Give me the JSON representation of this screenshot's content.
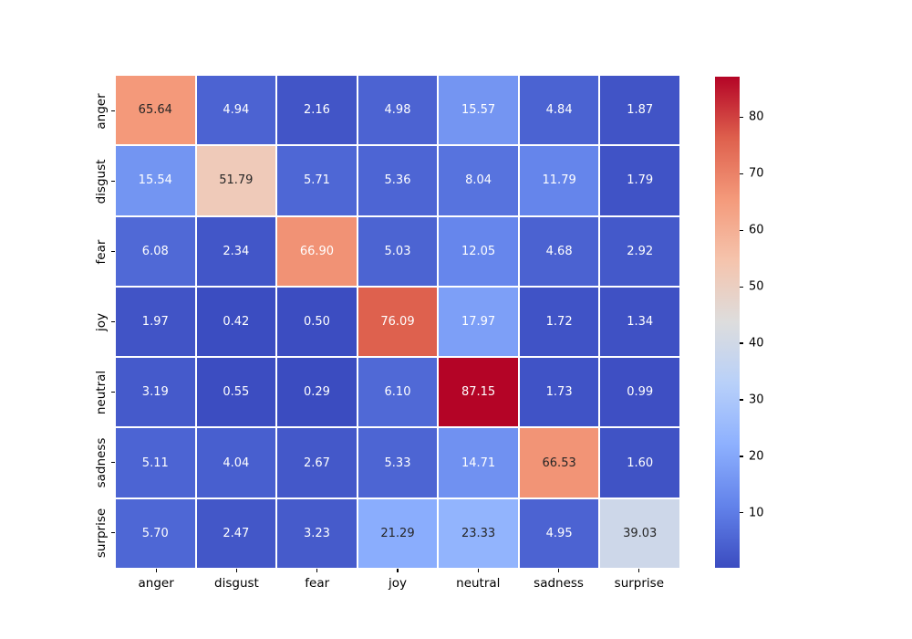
{
  "figure": {
    "background": "#ffffff"
  },
  "chart_data": {
    "type": "heatmap",
    "title": "",
    "xlabel": "",
    "ylabel": "",
    "x_categories": [
      "anger",
      "disgust",
      "fear",
      "joy",
      "neutral",
      "sadness",
      "surprise"
    ],
    "y_categories": [
      "anger",
      "disgust",
      "fear",
      "joy",
      "neutral",
      "sadness",
      "surprise"
    ],
    "matrix": [
      [
        65.64,
        4.94,
        2.16,
        4.98,
        15.57,
        4.84,
        1.87
      ],
      [
        15.54,
        51.79,
        5.71,
        5.36,
        8.04,
        11.79,
        1.79
      ],
      [
        6.08,
        2.34,
        66.9,
        5.03,
        12.05,
        4.68,
        2.92
      ],
      [
        1.97,
        0.42,
        0.5,
        76.09,
        17.97,
        1.72,
        1.34
      ],
      [
        3.19,
        0.55,
        0.29,
        6.1,
        87.15,
        1.73,
        0.99
      ],
      [
        5.11,
        4.04,
        2.67,
        5.33,
        14.71,
        66.53,
        1.6
      ],
      [
        5.7,
        2.47,
        3.23,
        21.29,
        23.33,
        4.95,
        39.03
      ]
    ],
    "value_decimals": 2,
    "vmin": 0.29,
    "vmax": 87.15,
    "annotation_text_colors": [
      [
        "dark",
        "light",
        "light",
        "light",
        "light",
        "light",
        "light"
      ],
      [
        "light",
        "dark",
        "light",
        "light",
        "light",
        "light",
        "light"
      ],
      [
        "light",
        "light",
        "light",
        "light",
        "light",
        "light",
        "light"
      ],
      [
        "light",
        "light",
        "light",
        "light",
        "light",
        "light",
        "light"
      ],
      [
        "light",
        "light",
        "light",
        "light",
        "light",
        "light",
        "light"
      ],
      [
        "light",
        "light",
        "light",
        "light",
        "light",
        "dark",
        "light"
      ],
      [
        "light",
        "light",
        "light",
        "dark",
        "dark",
        "light",
        "dark"
      ]
    ],
    "annotation_colors": {
      "light": "#ffffff",
      "dark": "#262626"
    },
    "colormap": {
      "name": "coolwarm",
      "stops": [
        [
          59,
          76,
          192
        ],
        [
          98,
          130,
          234
        ],
        [
          141,
          176,
          254
        ],
        [
          184,
          208,
          249
        ],
        [
          221,
          221,
          221
        ],
        [
          245,
          196,
          173
        ],
        [
          244,
          154,
          123
        ],
        [
          222,
          96,
          77
        ],
        [
          180,
          4,
          38
        ]
      ]
    },
    "grid_line_color": "#ffffff",
    "colorbar": {
      "ticks": [
        10,
        20,
        30,
        40,
        50,
        60,
        70,
        80
      ],
      "position": "right"
    },
    "legend": null,
    "grid": false
  }
}
